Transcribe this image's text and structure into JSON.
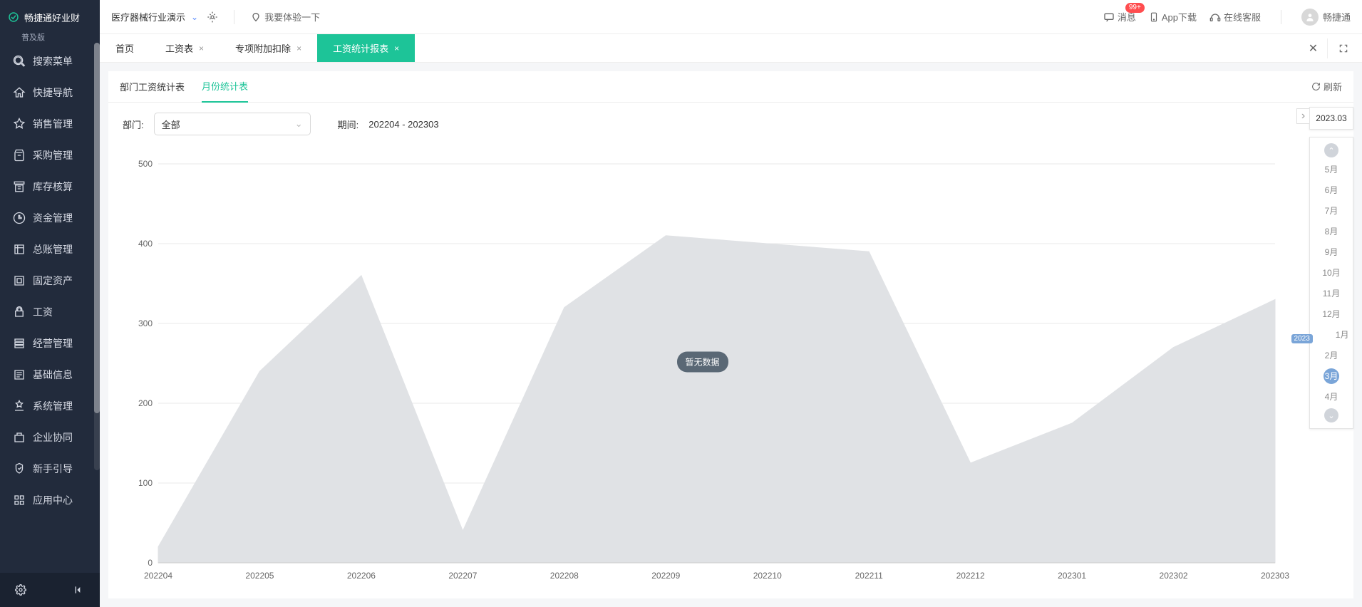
{
  "brand": {
    "name": "畅捷通好业财",
    "edition": "普及版"
  },
  "header": {
    "company": "医疗器械行业演示",
    "try_btn": "我要体验一下",
    "msg": "消息",
    "msg_badge": "99+",
    "app": "App下载",
    "service": "在线客服",
    "user": "畅捷通"
  },
  "nav": [
    "搜索菜单",
    "快捷导航",
    "销售管理",
    "采购管理",
    "库存核算",
    "资金管理",
    "总账管理",
    "固定资产",
    "工资",
    "经营管理",
    "基础信息",
    "系统管理",
    "企业协同",
    "新手引导",
    "应用中心"
  ],
  "tabs": [
    {
      "label": "首页",
      "closable": false,
      "active": false
    },
    {
      "label": "工资表",
      "closable": true,
      "active": false
    },
    {
      "label": "专项附加扣除",
      "closable": true,
      "active": false
    },
    {
      "label": "工资统计报表",
      "closable": true,
      "active": true
    }
  ],
  "sub_tabs": {
    "a": "部门工资统计表",
    "b": "月份统计表"
  },
  "refresh": "刷新",
  "filters": {
    "dept_label": "部门:",
    "dept_value": "全部",
    "period_label": "期间:",
    "period_value": "202204 - 202303"
  },
  "chart": {
    "type": "area",
    "no_data": "暂无数据",
    "categories": [
      "202204",
      "202205",
      "202206",
      "202207",
      "202208",
      "202209",
      "202210",
      "202211",
      "202212",
      "202301",
      "202302",
      "202303"
    ],
    "values": [
      20,
      240,
      360,
      40,
      320,
      410,
      400,
      390,
      125,
      175,
      270,
      330
    ],
    "ylim": [
      0,
      500
    ],
    "ytick_step": 100,
    "fill_color": "#e0e2e5",
    "line_color": "#e0e2e5",
    "grid_color": "#e8e8e8",
    "axis_color": "#cccccc",
    "label_color": "#666666",
    "label_fontsize": 12,
    "background": "#ffffff"
  },
  "date_rail": {
    "current": "2023.03",
    "year_tag": "2023",
    "months": [
      "5月",
      "6月",
      "7月",
      "8月",
      "9月",
      "10月",
      "11月",
      "12月",
      "1月",
      "2月",
      "3月",
      "4月"
    ],
    "active_index": 10,
    "year_before_index": 8
  }
}
